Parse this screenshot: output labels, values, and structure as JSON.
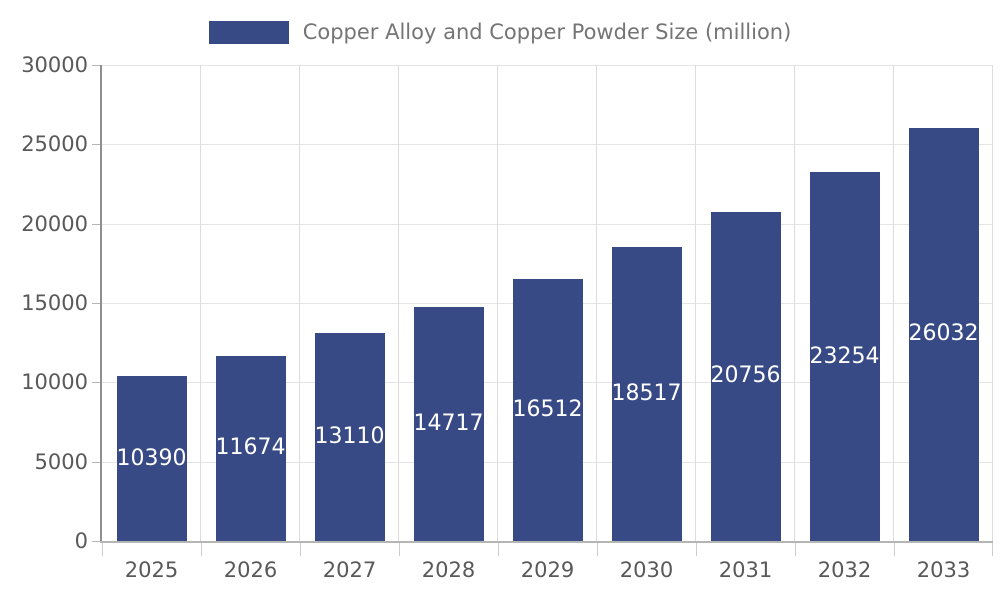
{
  "chart_data": {
    "type": "bar",
    "title": "Copper Alloy and Copper Powder Size (million)",
    "categories": [
      "2025",
      "2026",
      "2027",
      "2028",
      "2029",
      "2030",
      "2031",
      "2032",
      "2033"
    ],
    "values": [
      10390,
      11674,
      13110,
      14717,
      16512,
      18517,
      20756,
      23254,
      26032
    ],
    "xlabel": "",
    "ylabel": "",
    "ylim": [
      0,
      30000
    ],
    "yticks": [
      0,
      5000,
      10000,
      15000,
      20000,
      25000,
      30000
    ],
    "grid": true,
    "legend": {
      "position": "top-center",
      "entries": [
        "Copper Alloy and Copper Powder Size (million)"
      ]
    },
    "colors": {
      "bar": "#374a85",
      "bar_label": "#ffffff",
      "axis_text": "#595959",
      "legend_text": "#757575",
      "grid_h": "#e4e4e7",
      "grid_v": "#dcdcdf",
      "axis_line": "#8f8f8f",
      "baseline": "#b5b5b5",
      "tick": "#cccccc"
    }
  }
}
